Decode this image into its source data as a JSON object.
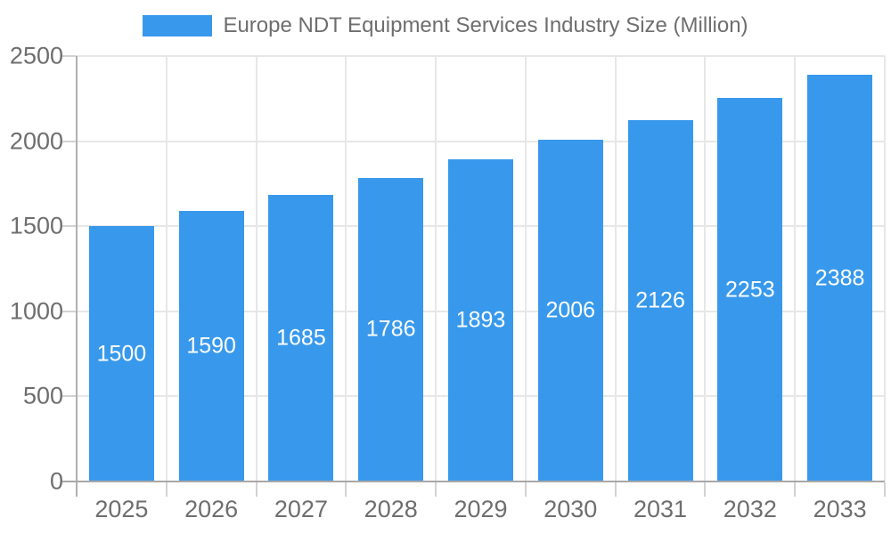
{
  "legend": {
    "label": "Europe NDT Equipment Services Industry Size (Million)"
  },
  "chart_data": {
    "type": "bar",
    "title": "Europe NDT Equipment Services Industry Size (Million)",
    "categories": [
      "2025",
      "2026",
      "2027",
      "2028",
      "2029",
      "2030",
      "2031",
      "2032",
      "2033"
    ],
    "values": [
      1500,
      1590,
      1685,
      1786,
      1893,
      2006,
      2126,
      2253,
      2388
    ],
    "xlabel": "",
    "ylabel": "",
    "ylim": [
      0,
      2500
    ],
    "yticks": [
      0,
      500,
      1000,
      1500,
      2000,
      2500
    ],
    "grid": true,
    "legend_position": "top-center",
    "value_labels": "inside-middle",
    "colors": {
      "bar": "#3899EC",
      "grid": "#E7E7E7",
      "tick_mark": "#D2D2D2",
      "axis_line": "#ABABAB",
      "label_text": "#6E6E6E",
      "value_text": "#FFFFFF",
      "background": "#FFFFFF"
    }
  }
}
